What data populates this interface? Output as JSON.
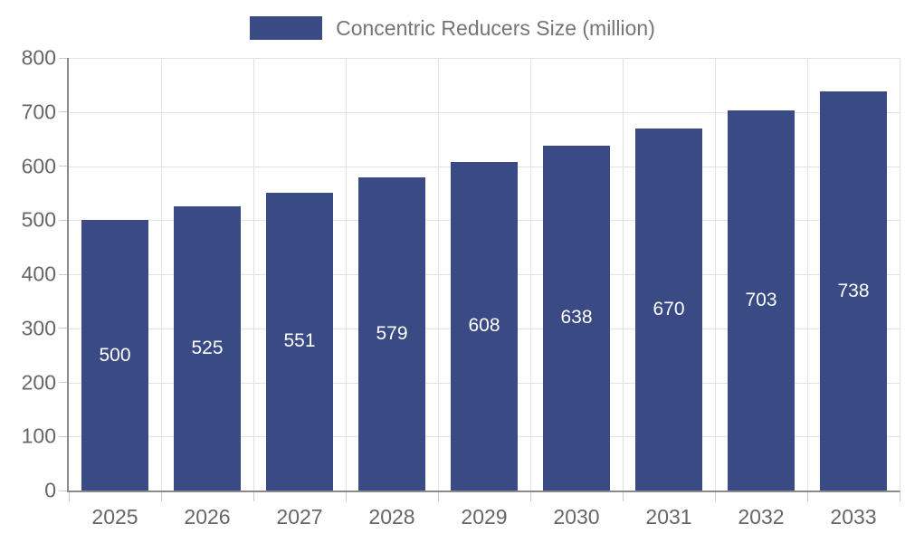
{
  "chart_data": {
    "type": "bar",
    "title": "Concentric Reducers Size (million)",
    "categories": [
      "2025",
      "2026",
      "2027",
      "2028",
      "2029",
      "2030",
      "2031",
      "2032",
      "2033"
    ],
    "series": [
      {
        "name": "Concentric Reducers Size (million)",
        "values": [
          500,
          525,
          551,
          579,
          608,
          638,
          670,
          703,
          738
        ]
      }
    ],
    "xlabel": "",
    "ylabel": "",
    "ylim": [
      0,
      800
    ],
    "y_ticks": [
      0,
      100,
      200,
      300,
      400,
      500,
      600,
      700,
      800
    ],
    "grid": true,
    "bar_labels_shown": true,
    "legend_position": "top-center",
    "legend": [
      {
        "label": "Concentric Reducers Size (million)",
        "color": "#394a85"
      }
    ],
    "colors": {
      "bar": "#394a85",
      "bar_label": "#ffffff",
      "axis_line": "#8a8a8a",
      "grid_line": "#e2e2e2",
      "tick_label": "#666666",
      "legend_text": "#757575"
    }
  }
}
